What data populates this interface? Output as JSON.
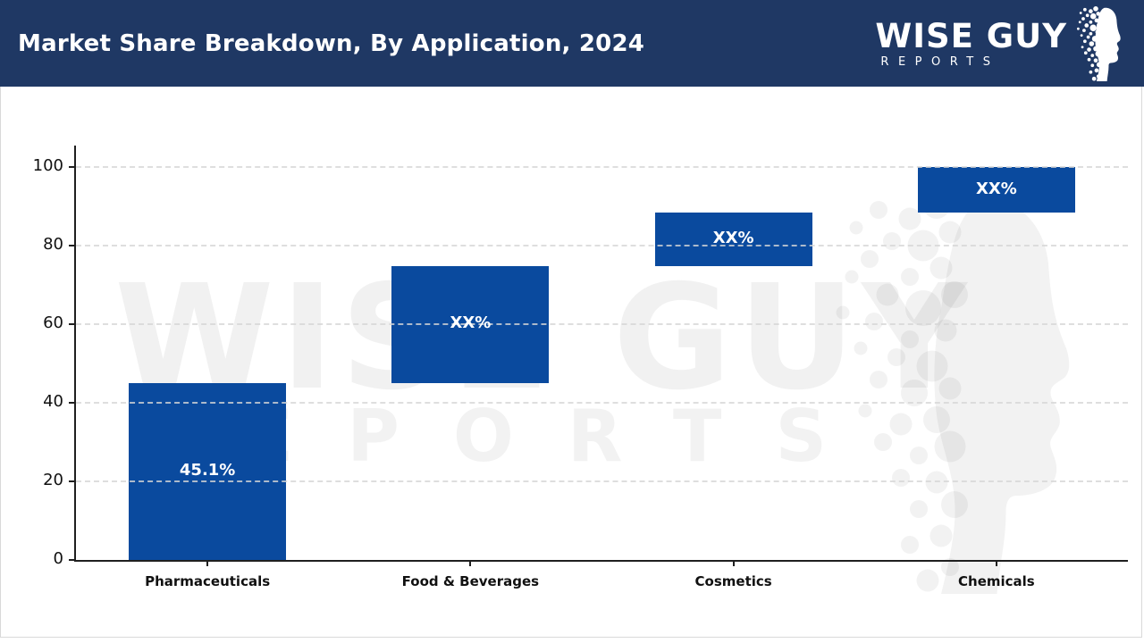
{
  "header": {
    "title": "Market Share Breakdown, By Application, 2024",
    "brand": {
      "line1": "WISE GUY",
      "line2": "REPORTS"
    }
  },
  "chart_data": {
    "type": "bar",
    "subtype": "waterfall",
    "title": "Market Share Breakdown, By Application, 2024",
    "categories": [
      "Pharmaceuticals",
      "Food & Beverages",
      "Cosmetics",
      "Chemicals"
    ],
    "segments": [
      {
        "category": "Pharmaceuticals",
        "start": 0,
        "end": 45.1,
        "label": "45.1%"
      },
      {
        "category": "Food & Beverages",
        "start": 45.1,
        "end": 74.8,
        "label": "XX%"
      },
      {
        "category": "Cosmetics",
        "start": 74.8,
        "end": 88.4,
        "label": "XX%"
      },
      {
        "category": "Chemicals",
        "start": 88.4,
        "end": 100,
        "label": "XX%"
      }
    ],
    "xlabel": "",
    "ylabel": "",
    "ylim": [
      0,
      100
    ],
    "yticks": [
      0,
      20,
      40,
      60,
      80,
      100
    ],
    "grid": "horizontal-dashed-over-bars",
    "legend": "none",
    "bar_color": "#0a4a9e",
    "bar_label_color": "#ffffff"
  },
  "colors": {
    "header_bg": "#1f3864",
    "axis": "#1f1f1f",
    "gridline": "#d6d6d6",
    "watermark": "#f1f1f1"
  }
}
